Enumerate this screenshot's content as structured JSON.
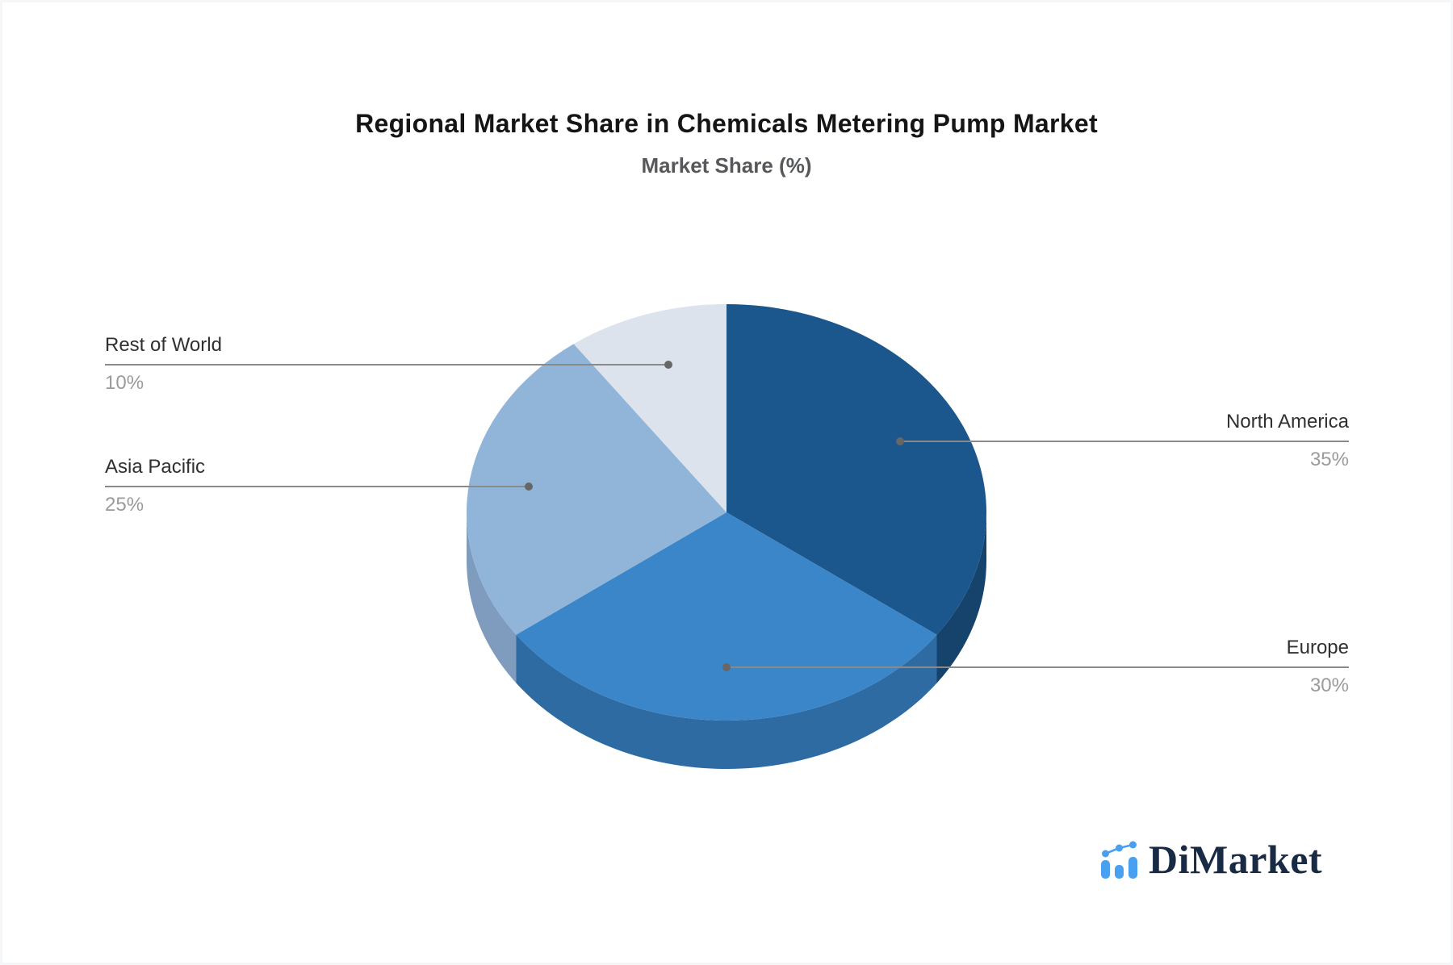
{
  "header": {
    "title": "Regional Market Share in Chemicals Metering Pump Market",
    "subtitle": "Market Share (%)"
  },
  "chart_data": {
    "type": "pie",
    "title": "Regional Market Share in Chemicals Metering Pump Market",
    "subtitle": "Market Share (%)",
    "unit": "%",
    "effect": "3d",
    "direction": "clockwise",
    "start_angle_deg": 0,
    "legend_position": "none",
    "categories": [
      "North America",
      "Europe",
      "Asia Pacific",
      "Rest of World"
    ],
    "values": [
      35,
      30,
      25,
      10
    ],
    "point_labels": [
      "35%",
      "30%",
      "25%",
      "10%"
    ],
    "colors": [
      "#1b578c",
      "#3a86c8",
      "#91b5d9",
      "#dce3ed"
    ],
    "side_colors": [
      "#15436b",
      "#2e6ba3",
      "#7f9cbe",
      "#b6c3d6"
    ]
  },
  "callouts": [
    {
      "label": "Rest of World",
      "value": "10%",
      "side": "left"
    },
    {
      "label": "Asia Pacific",
      "value": "25%",
      "side": "left"
    },
    {
      "label": "North America",
      "value": "35%",
      "side": "right"
    },
    {
      "label": "Europe",
      "value": "30%",
      "side": "right"
    }
  ],
  "callout_style": {
    "line_color": "#8a8a8a",
    "dot_color": "#676767",
    "label_color": "#2e3032",
    "value_color": "#9b9b9b"
  },
  "logo": {
    "text": "DiMarket",
    "icon": "bar-chart-trend-icon",
    "icon_color": "#4aa0f0",
    "text_color": "#182a44"
  }
}
